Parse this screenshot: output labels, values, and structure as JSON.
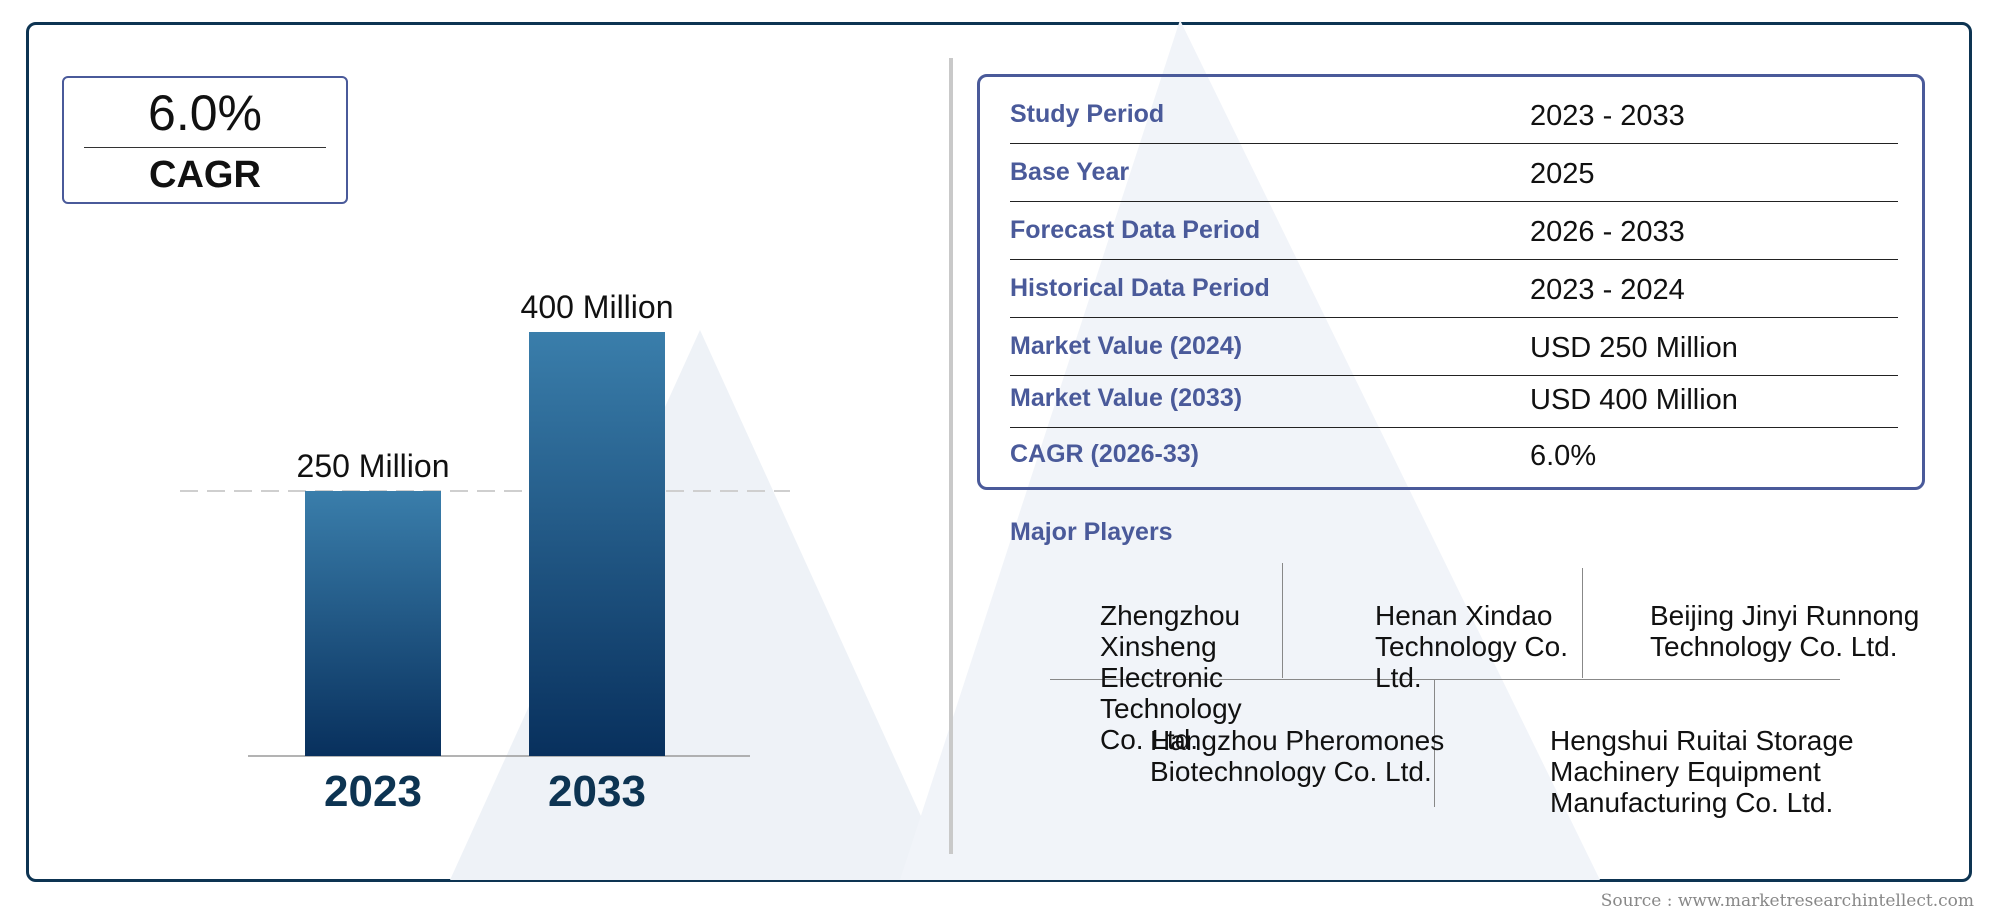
{
  "cagr_box": {
    "value": "6.0%",
    "label": "CAGR"
  },
  "chart_data": {
    "type": "bar",
    "categories": [
      "2023",
      "2033"
    ],
    "values": [
      250,
      400
    ],
    "data_labels": [
      "250 Million",
      "400 Million"
    ],
    "reference_line": 250,
    "colors": [
      "#3a7eab",
      "#08305d"
    ]
  },
  "table": {
    "rows": [
      {
        "key": "Study Period",
        "value": "2023 - 2033"
      },
      {
        "key": "Base Year",
        "value": "2025"
      },
      {
        "key": "Forecast Data Period",
        "value": "2026 - 2033"
      },
      {
        "key": "Historical Data Period",
        "value": "2023 - 2024"
      },
      {
        "key": "Market Value (2024)",
        "value": "USD 250 Million"
      },
      {
        "key": "Market Value (2033)",
        "value": "USD 400 Million"
      },
      {
        "key": "CAGR (2026-33)",
        "value": "6.0%"
      }
    ]
  },
  "players": {
    "title": "Major Players",
    "names": [
      "Zhengzhou Xinsheng Electronic Technology Co. Ltd.",
      "Henan Xindao Technology Co. Ltd.",
      "Beijing Jinyi Runnong Technology Co. Ltd.",
      "Hangzhou Pheromones Biotechnology Co. Ltd.",
      "Hengshui Ruitai Storage Machinery Equipment Manufacturing Co. Ltd."
    ]
  },
  "source": "Source : www.marketresearchintellect.com"
}
